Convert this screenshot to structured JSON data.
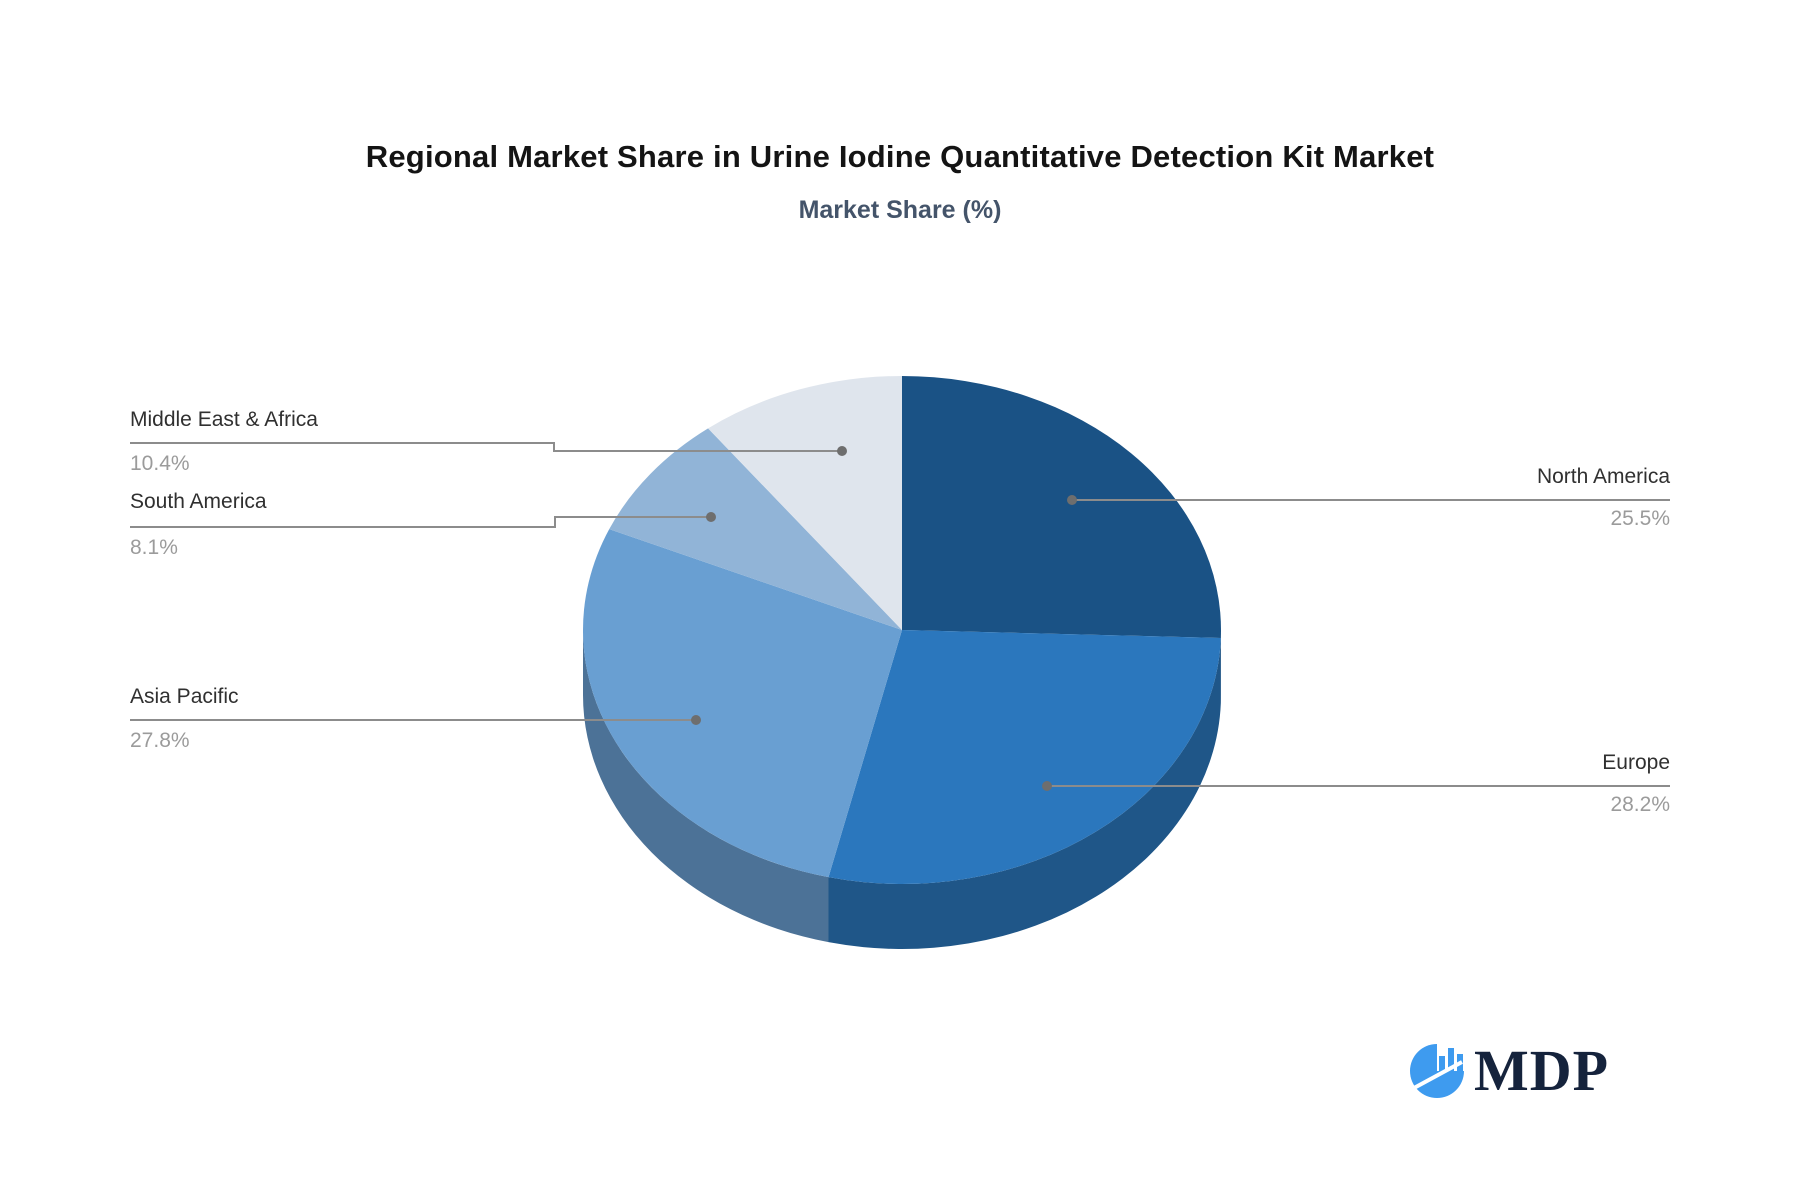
{
  "title": "Regional Market Share in Urine Iodine Quantitative Detection Kit Market",
  "subtitle": "Market Share (%)",
  "logo": {
    "text": "MDP"
  },
  "chart_data": {
    "type": "pie",
    "title": "Regional Market Share in Urine Iodine Quantitative Detection Kit Market",
    "subtitle": "Market Share (%)",
    "unit": "%",
    "effect": "3d",
    "legend": "callout-labels",
    "slices": [
      {
        "label": "North America",
        "value": 25.5,
        "display": "25.5%",
        "color": "#1a5285"
      },
      {
        "label": "Europe",
        "value": 28.2,
        "display": "28.2%",
        "color": "#2b77bd"
      },
      {
        "label": "Asia Pacific",
        "value": 27.8,
        "display": "27.8%",
        "color": "#699fd2"
      },
      {
        "label": "South America",
        "value": 8.1,
        "display": "8.1%",
        "color": "#91b4d7"
      },
      {
        "label": "Middle East & Africa",
        "value": 10.4,
        "display": "10.4%",
        "color": "#dfe5ed"
      }
    ],
    "colors": {
      "callout_line": "#8c8c8c",
      "callout_dot": "#6e6e6e",
      "label_text": "#303030",
      "pct_text": "#9b9b9b",
      "title_text": "#141414",
      "subtitle_text": "#44546a",
      "logo_blue": "#3e9bef",
      "logo_navy": "#15233c"
    }
  }
}
